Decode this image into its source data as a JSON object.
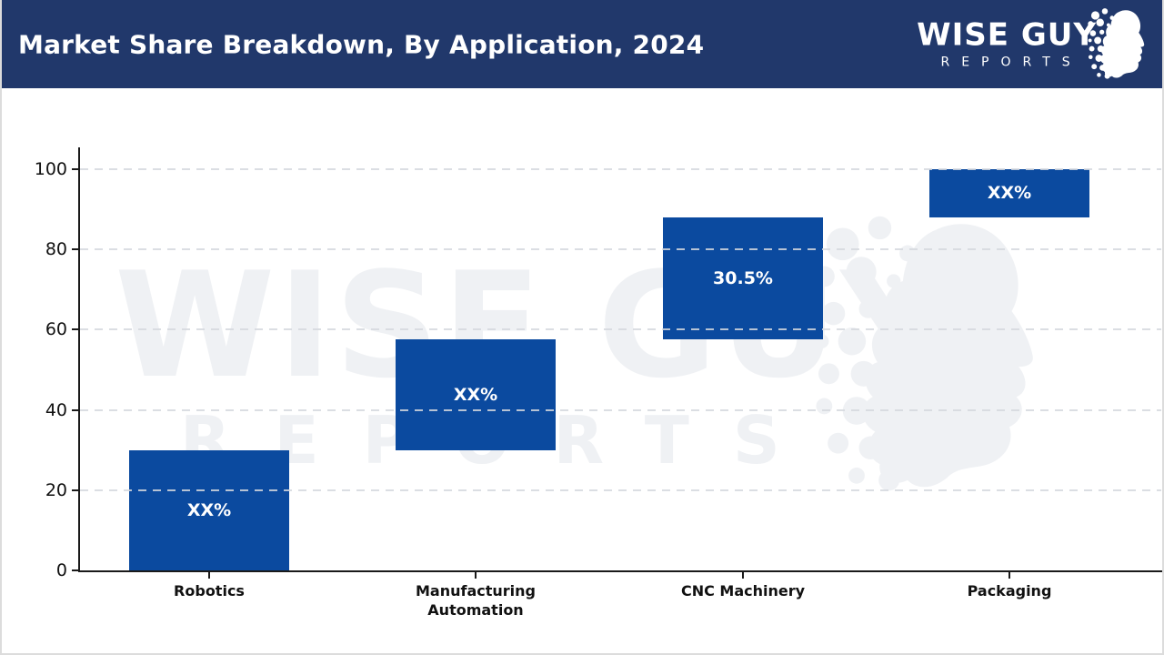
{
  "header": {
    "title": "Market Share Breakdown, By Application, 2024",
    "logo": {
      "name": "WISE GUY",
      "tagline": "REPORTS"
    }
  },
  "watermark": {
    "name": "WISE GUY",
    "tagline": "REPORTS"
  },
  "chart_data": {
    "type": "bar",
    "subtype": "floating-waterfall",
    "title": "Market Share Breakdown, By Application, 2024",
    "categories": [
      "Robotics",
      "Manufacturing Automation",
      "CNC Machinery",
      "Packaging"
    ],
    "bars": [
      {
        "category": "Robotics",
        "start": 0,
        "end": 30,
        "label": "XX%"
      },
      {
        "category": "Manufacturing Automation",
        "start": 30,
        "end": 57.5,
        "label": "XX%"
      },
      {
        "category": "CNC Machinery",
        "start": 57.5,
        "end": 88,
        "label": "30.5%"
      },
      {
        "category": "Packaging",
        "start": 88,
        "end": 100,
        "label": "XX%"
      }
    ],
    "xlabel": "",
    "ylabel": "",
    "ylim": [
      0,
      100
    ],
    "yticks": [
      0,
      20,
      40,
      60,
      80,
      100
    ],
    "grid": "horizontal-dashed-above-bars",
    "legend": "none"
  },
  "colors": {
    "header_bg": "#21386b",
    "bar": "#0b4a9f",
    "bar_label": "#ffffff",
    "axis": "#1a1a1a",
    "grid": "#d9dce0",
    "watermark": "#eff1f4",
    "page_border": "#dcdcdc"
  }
}
